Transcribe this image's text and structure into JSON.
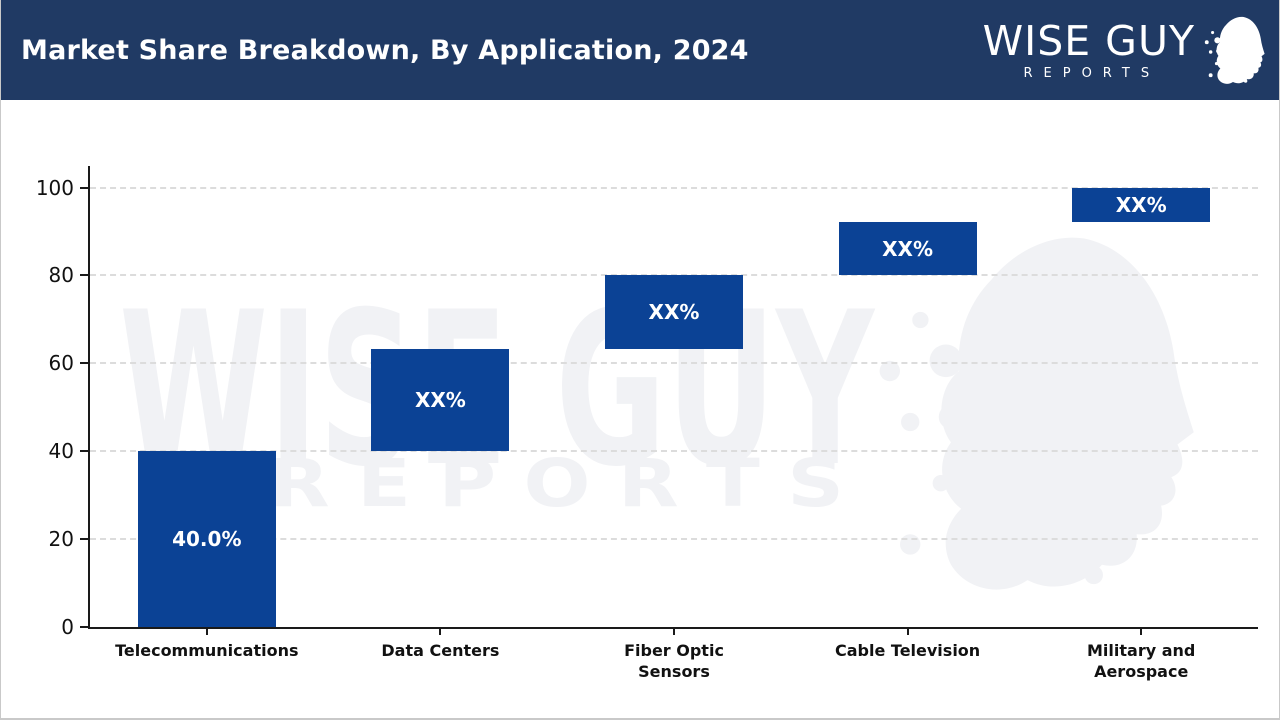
{
  "header": {
    "title": "Market Share Breakdown, By Application, 2024",
    "logo": {
      "line1": "WISE GUY",
      "line2": "REPORTS"
    }
  },
  "watermark": {
    "line1": "WISE GUY",
    "line2": "R E P O R T S"
  },
  "colors": {
    "header_bg": "#203a64",
    "bar": "#0b4295",
    "bar_label": "#ffffff",
    "grid": "#dcdcdc",
    "axis": "#1a1a1a",
    "watermark": "#f1f2f5"
  },
  "chart_data": {
    "type": "bar",
    "subtype": "waterfall",
    "title": "Market Share Breakdown, By Application, 2024",
    "xlabel": "",
    "ylabel": "",
    "ylim": [
      0,
      105
    ],
    "yticks": [
      0,
      20,
      40,
      60,
      80,
      100
    ],
    "grid": "horizontal-dashed",
    "legend": "none",
    "categories": [
      "Telecommunications",
      "Data Centers",
      "Fiber Optic\nSensors",
      "Cable Television",
      "Military and\nAerospace"
    ],
    "segments": [
      {
        "category": "Telecommunications",
        "start": 0,
        "end": 40,
        "value": 40.0,
        "label": "40.0%"
      },
      {
        "category": "Data Centers",
        "start": 40,
        "end": 63.3,
        "value": 23.3,
        "label": "XX%"
      },
      {
        "category": "Fiber Optic\nSensors",
        "start": 63.3,
        "end": 80,
        "value": 16.7,
        "label": "XX%"
      },
      {
        "category": "Cable Television",
        "start": 80,
        "end": 92.2,
        "value": 12.2,
        "label": "XX%"
      },
      {
        "category": "Military and\nAerospace",
        "start": 92.2,
        "end": 100,
        "value": 7.8,
        "label": "XX%"
      }
    ]
  }
}
